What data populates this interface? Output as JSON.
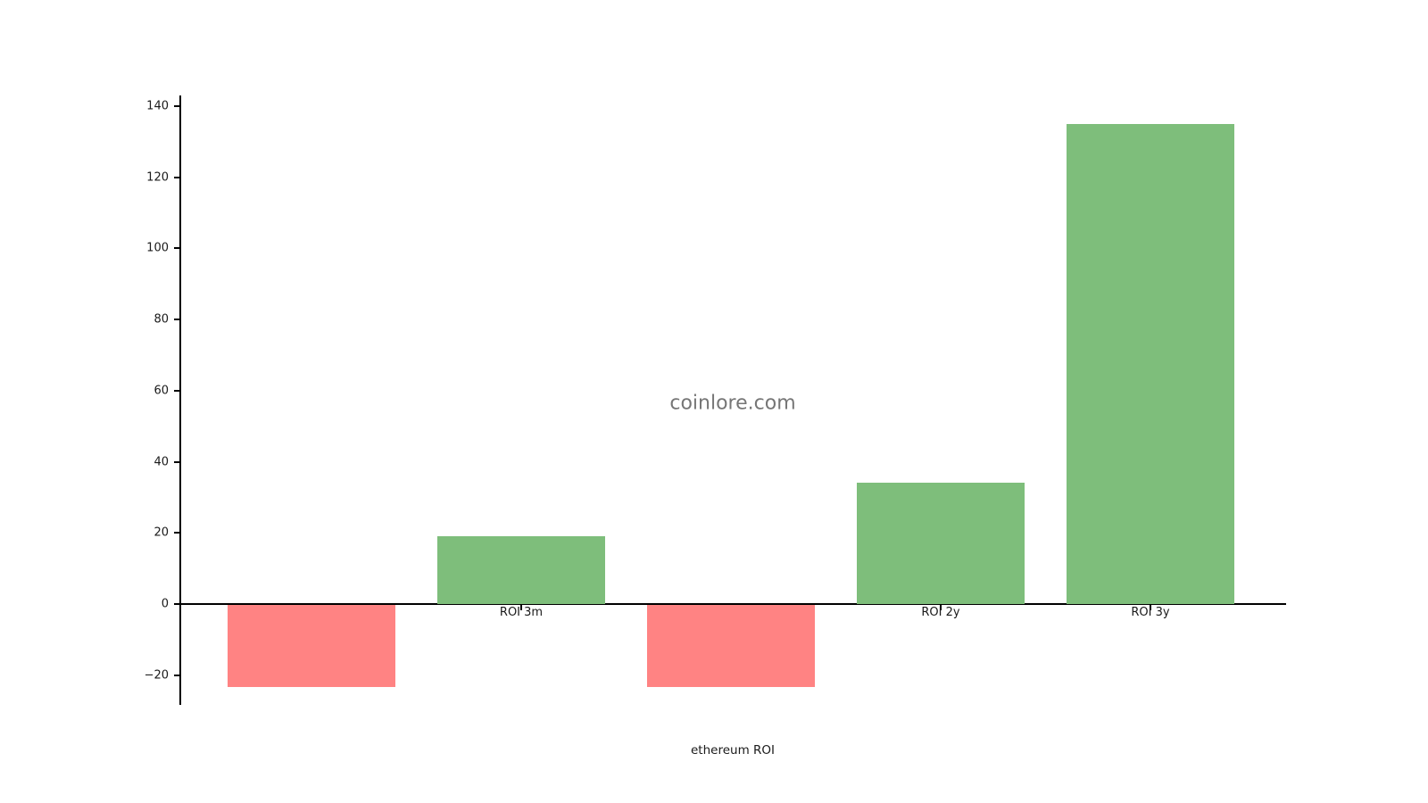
{
  "chart_data": {
    "type": "bar",
    "title": "",
    "xlabel": "ethereum ROI",
    "ylabel": "",
    "watermark": "coinlore.com",
    "categories": [
      "",
      "ROI 3m",
      "",
      "ROI 2y",
      "ROI 3y"
    ],
    "values": [
      -23,
      19,
      -23,
      34,
      135
    ],
    "bar_colors": [
      "#ff8383",
      "#7ebe7b",
      "#ff8383",
      "#7ebe7b",
      "#7ebe7b"
    ],
    "positive_color": "#7ebe7b",
    "negative_color": "#ff8383",
    "y_ticks": [
      140,
      120,
      100,
      80,
      60,
      40,
      20,
      0,
      -20
    ],
    "y_tick_labels": [
      "140",
      "120",
      "100",
      "80",
      "60",
      "40",
      "20",
      "0",
      "−20"
    ],
    "ylim": [
      -28.5,
      143
    ],
    "grid": false,
    "legend": null,
    "axis_color": "#000000",
    "text_color": "#1a1a1a",
    "watermark_color": "#767676"
  }
}
